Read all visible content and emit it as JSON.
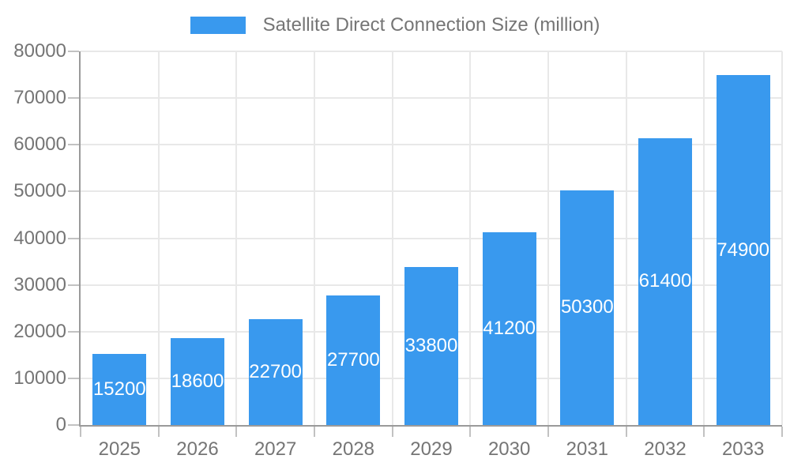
{
  "chart_data": {
    "type": "bar",
    "title": "Satellite Direct Connection Size (million)",
    "legend": {
      "label": "Satellite Direct Connection Size (million)",
      "position": "top"
    },
    "categories": [
      "2025",
      "2026",
      "2027",
      "2028",
      "2029",
      "2030",
      "2031",
      "2032",
      "2033"
    ],
    "values": [
      15200,
      18600,
      22700,
      27700,
      33800,
      41200,
      50300,
      61400,
      74900
    ],
    "value_labels": [
      "15200",
      "18600",
      "22700",
      "27700",
      "33800",
      "41200",
      "50300",
      "61400",
      "74900"
    ],
    "xlabel": "",
    "ylabel": "",
    "ylim": [
      0,
      80000
    ],
    "ytick_step": 10000,
    "ytick_labels": [
      "0",
      "10000",
      "20000",
      "30000",
      "40000",
      "50000",
      "60000",
      "70000",
      "80000"
    ],
    "grid": true,
    "colors": {
      "bar": "#3999EE",
      "value_label": "#ffffff",
      "axis_text": "#757575",
      "grid_line": "#e8e8e8",
      "axis_line": "#9a9a9a",
      "tick_mark": "#c2c2c2",
      "background": "#ffffff"
    }
  }
}
